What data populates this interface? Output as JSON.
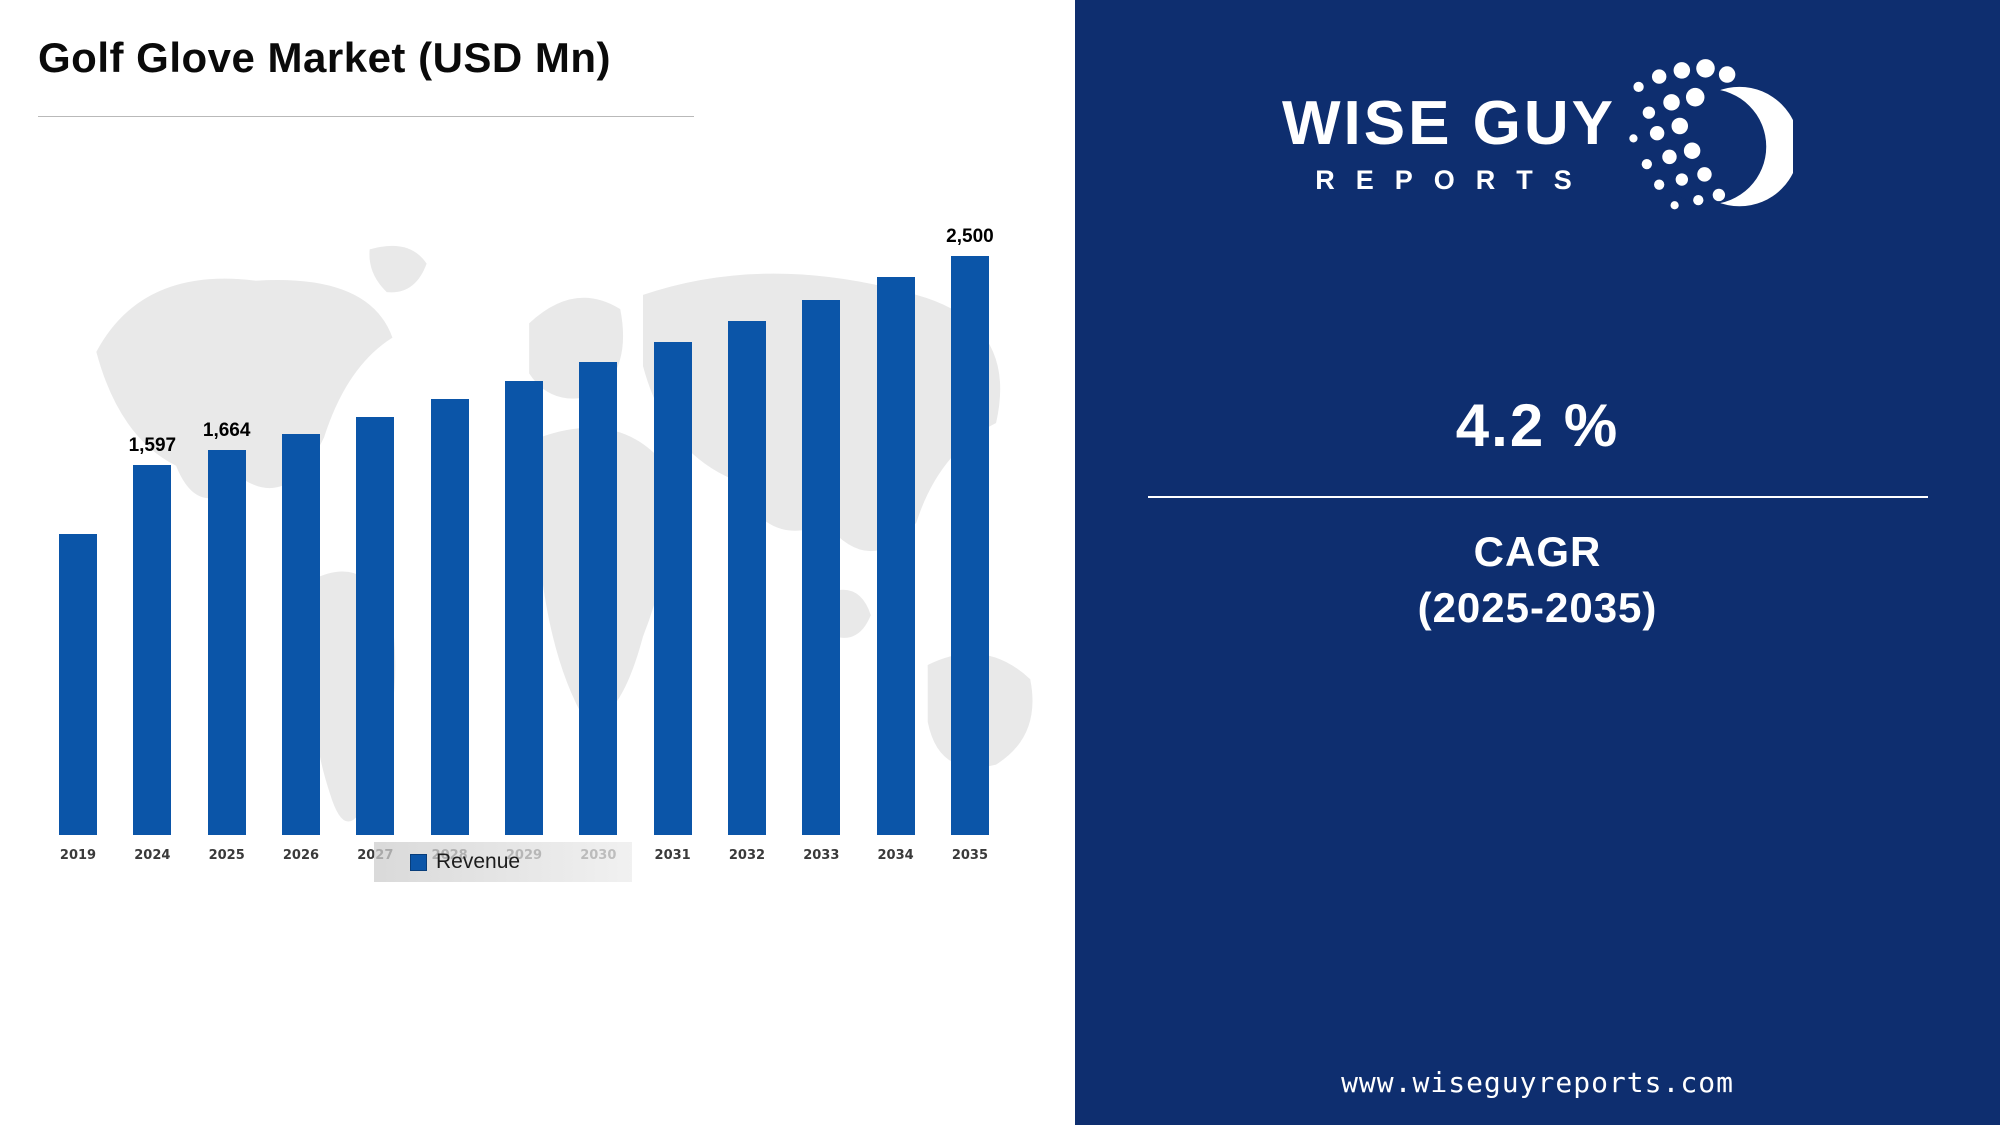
{
  "title": "Golf Glove Market (USD Mn)",
  "chart_data": {
    "type": "bar",
    "title": "Golf Glove Market (USD Mn)",
    "categories": [
      "2019",
      "2024",
      "2025",
      "2026",
      "2027",
      "2028",
      "2029",
      "2030",
      "2031",
      "2032",
      "2033",
      "2034",
      "2035"
    ],
    "values": [
      1300,
      1597,
      1664,
      1734,
      1807,
      1883,
      1962,
      2044,
      2130,
      2219,
      2312,
      2410,
      2500
    ],
    "data_labels": [
      "",
      "1,597",
      "1,664",
      "",
      "",
      "",
      "",
      "",
      "",
      "",
      "",
      "",
      "2,500"
    ],
    "xlabel": "",
    "ylabel": "",
    "ylim": [
      0,
      2700
    ],
    "grid": false,
    "bar_color": "#0b55a8",
    "legend_position": "bottom",
    "legend_label": "Revenue"
  },
  "sidebar": {
    "logo_line1": "WISE GUY",
    "logo_line2": "REPORTS",
    "cagr_value": "4.2 %",
    "cagr_label": "CAGR",
    "cagr_period": "(2025-2035)",
    "website": "www.wiseguyreports.com",
    "background_color": "#0e2e6f"
  }
}
